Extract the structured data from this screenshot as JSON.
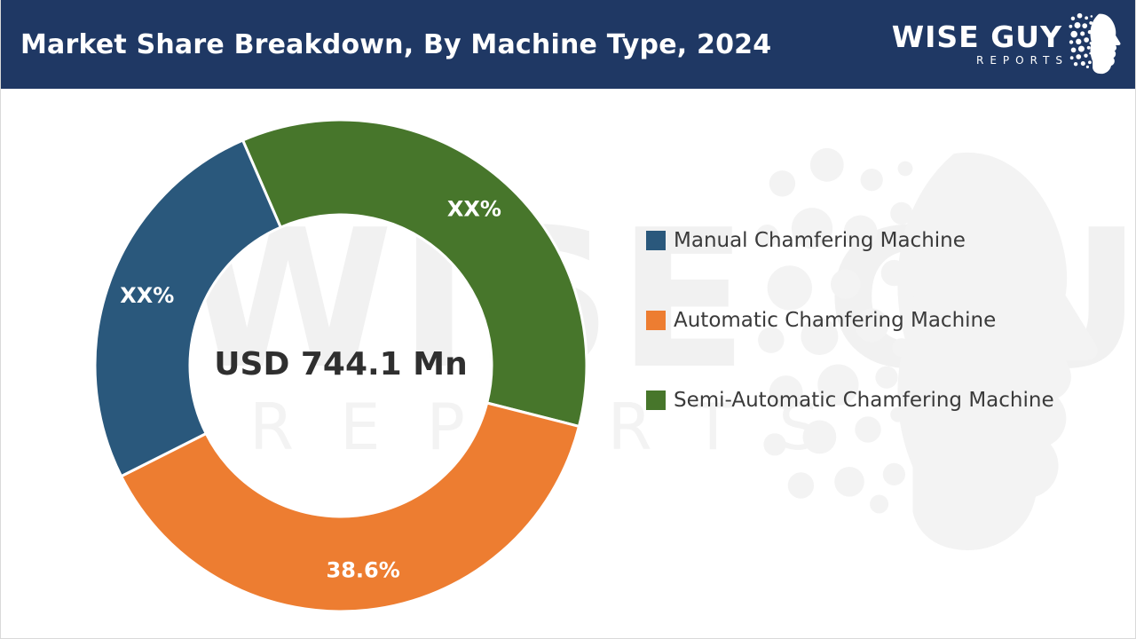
{
  "header": {
    "title": "Market Share Breakdown, By Machine Type, 2024",
    "background_color": "#1F3864",
    "logo": {
      "line1": "WISE GUY",
      "line2": "REPORTS"
    }
  },
  "watermark": {
    "line1": "WISE GUY",
    "line2": "REPORTS"
  },
  "chart_data": {
    "type": "pie",
    "subtype": "donut",
    "title": "Market Share Breakdown, By Machine Type, 2024",
    "center_label": "USD 744.1 Mn",
    "start_angle_deg": 113.5,
    "direction": "clockwise",
    "legend_position": "right",
    "slices": [
      {
        "name": "Semi-Automatic Chamfering Machine",
        "value_pct": 35.5,
        "label": "XX%",
        "color": "#47762B"
      },
      {
        "name": "Automatic Chamfering Machine",
        "value_pct": 38.6,
        "label": "38.6%",
        "color": "#ED7D31"
      },
      {
        "name": "Manual Chamfering Machine",
        "value_pct": 25.9,
        "label": "XX%",
        "color": "#2A587C"
      }
    ]
  },
  "legend": {
    "items": [
      {
        "label": "Manual Chamfering Machine",
        "color": "#2A587C"
      },
      {
        "label": "Automatic Chamfering Machine",
        "color": "#ED7D31"
      },
      {
        "label": "Semi-Automatic Chamfering Machine",
        "color": "#47762B"
      }
    ]
  }
}
